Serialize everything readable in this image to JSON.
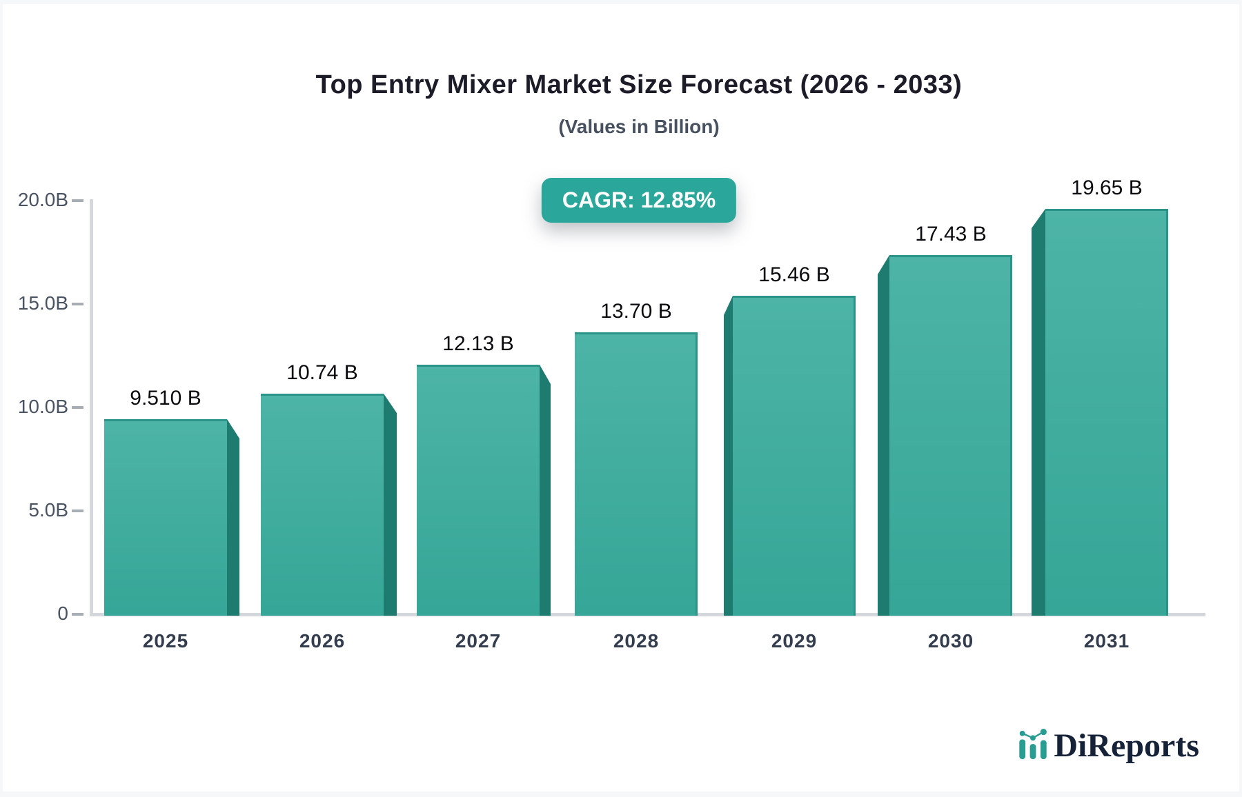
{
  "page": {
    "background": "#f5f7f9",
    "card_background": "#ffffff"
  },
  "header": {
    "title": "Top Entry Mixer Market Size Forecast (2026 - 2033)",
    "subtitle": "(Values in Billion)"
  },
  "badge": {
    "label": "CAGR: 12.85%",
    "background": "#2aa79a",
    "text_color": "#ffffff"
  },
  "chart_data": {
    "type": "bar",
    "categories": [
      "2025",
      "2026",
      "2027",
      "2028",
      "2029",
      "2030",
      "2031"
    ],
    "values": [
      9.51,
      10.74,
      12.13,
      13.7,
      15.46,
      17.43,
      19.65
    ],
    "value_labels": [
      "9.510 B",
      "10.74 B",
      "12.13 B",
      "13.70 B",
      "15.46 B",
      "17.43 B",
      "19.65 B"
    ],
    "title": "Top Entry Mixer Market Size Forecast (2026 - 2033)",
    "subtitle": "(Values in Billion)",
    "xlabel": "",
    "ylabel": "",
    "ylim": [
      0,
      20
    ],
    "yticks": [
      {
        "value": 20,
        "label": "20.0B"
      },
      {
        "value": 15,
        "label": "15.0B"
      },
      {
        "value": 10,
        "label": "10.0B"
      },
      {
        "value": 5,
        "label": "5.0B"
      },
      {
        "value": 0,
        "label": "0"
      }
    ],
    "grid": "off",
    "legend_position": "none",
    "style_3d": true,
    "colors": {
      "bar_face_top": "#4db4a7",
      "bar_face_bottom": "#35a697",
      "bar_top_edge": "#2b9488",
      "bar_side": "#1e7b70",
      "axis": "#d4d8dd",
      "tick": "#a7adb5",
      "tick_label": "#4a5362",
      "category_label": "#333d4e",
      "value_label": "#0b0b0f"
    }
  },
  "footer": {
    "logo_text": "DiReports",
    "logo_text_color": "#152238",
    "logo_icon": "bar-chart-trend-icon",
    "logo_icon_color": "#2a9d93"
  }
}
